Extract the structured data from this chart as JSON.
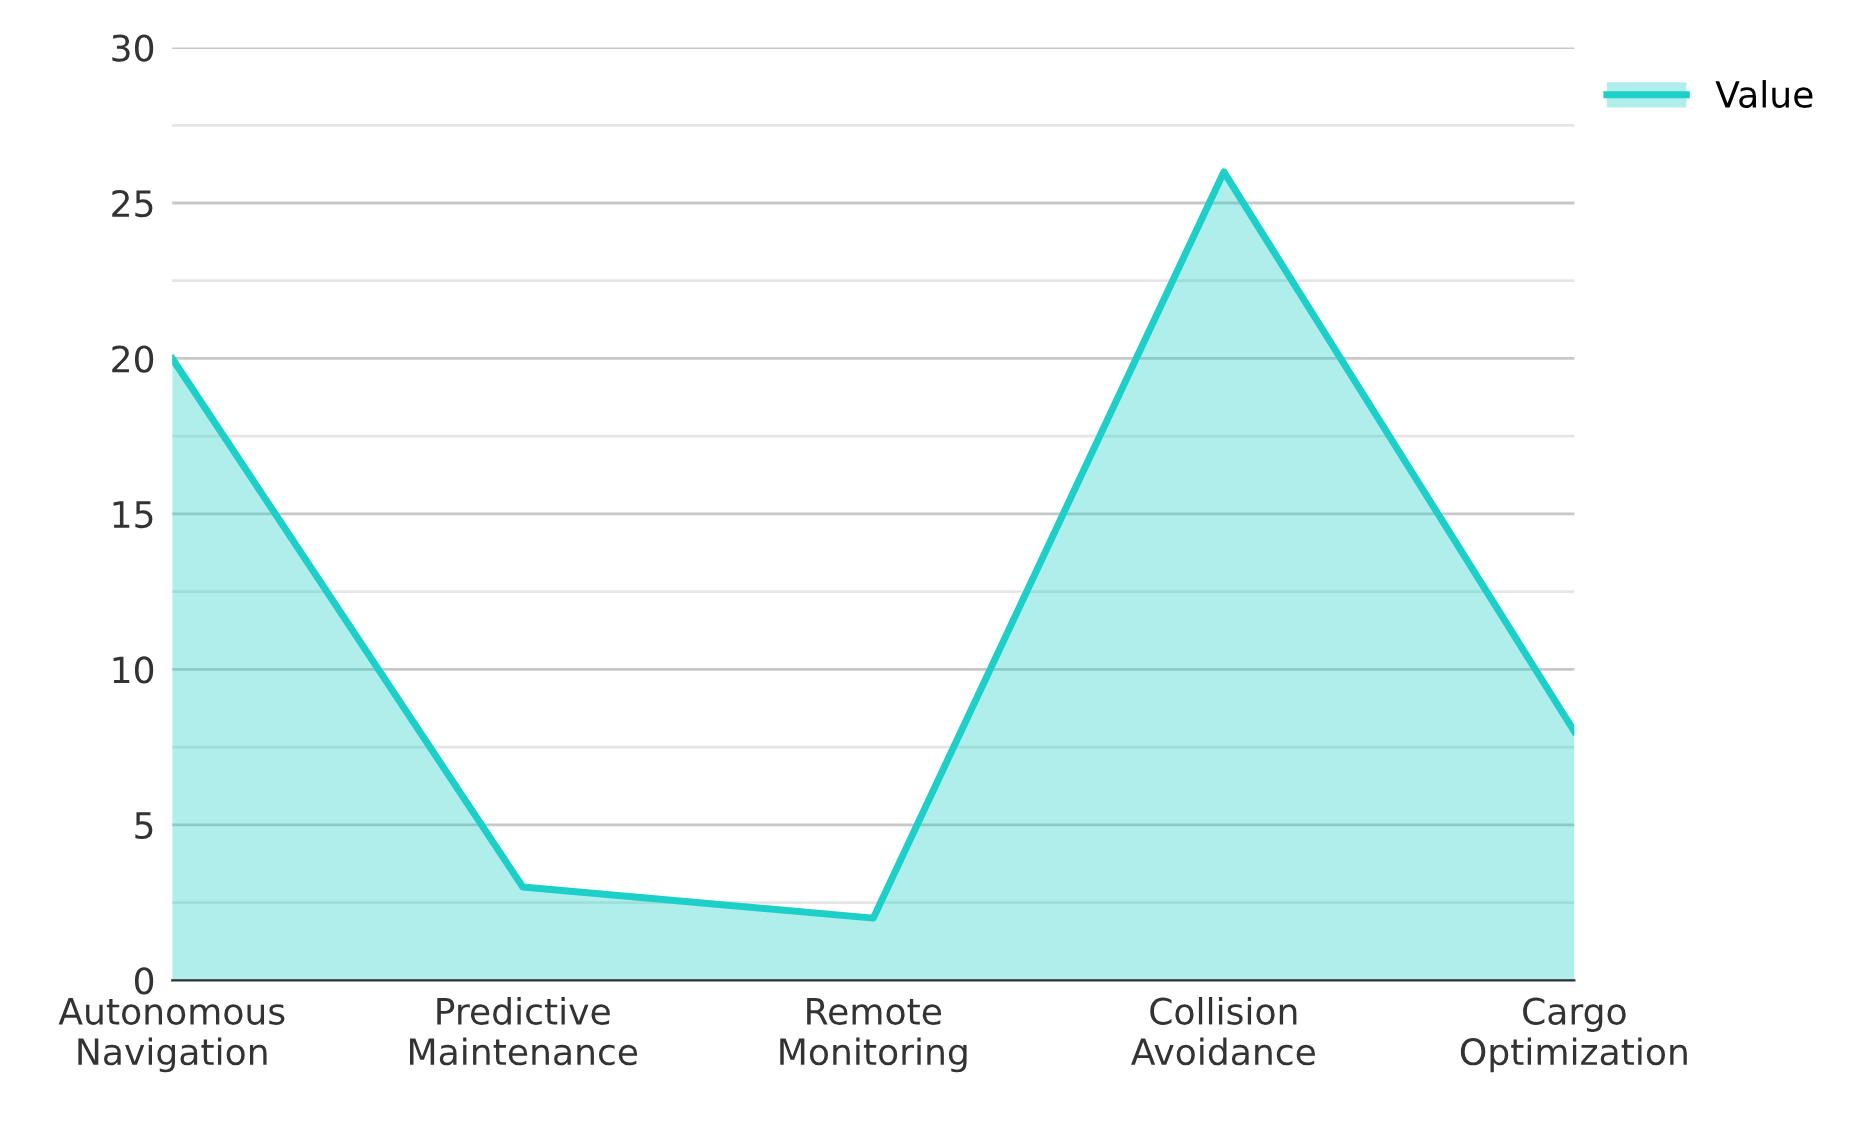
{
  "chart_data": {
    "type": "area",
    "categories": [
      "Autonomous\nNavigation",
      "Predictive\nMaintenance",
      "Remote\nMonitoring",
      "Collision\nAvoidance",
      "Cargo\nOptimization"
    ],
    "series": [
      {
        "name": "Value",
        "color": "#1ccfc9",
        "values": [
          20,
          3,
          2,
          26,
          8
        ]
      }
    ],
    "ylim": [
      0,
      30
    ],
    "yticks": [
      0,
      {
        "value": 2.5,
        "label": null
      },
      5,
      {
        "value": 7.5,
        "label": null
      },
      10,
      {
        "value": 12.5,
        "label": null
      },
      15,
      {
        "value": 17.5,
        "label": null
      },
      20,
      {
        "value": 22.5,
        "label": null
      },
      25,
      {
        "value": 27.5,
        "label": null
      },
      30
    ],
    "grid": "y",
    "legend": "top right"
  }
}
